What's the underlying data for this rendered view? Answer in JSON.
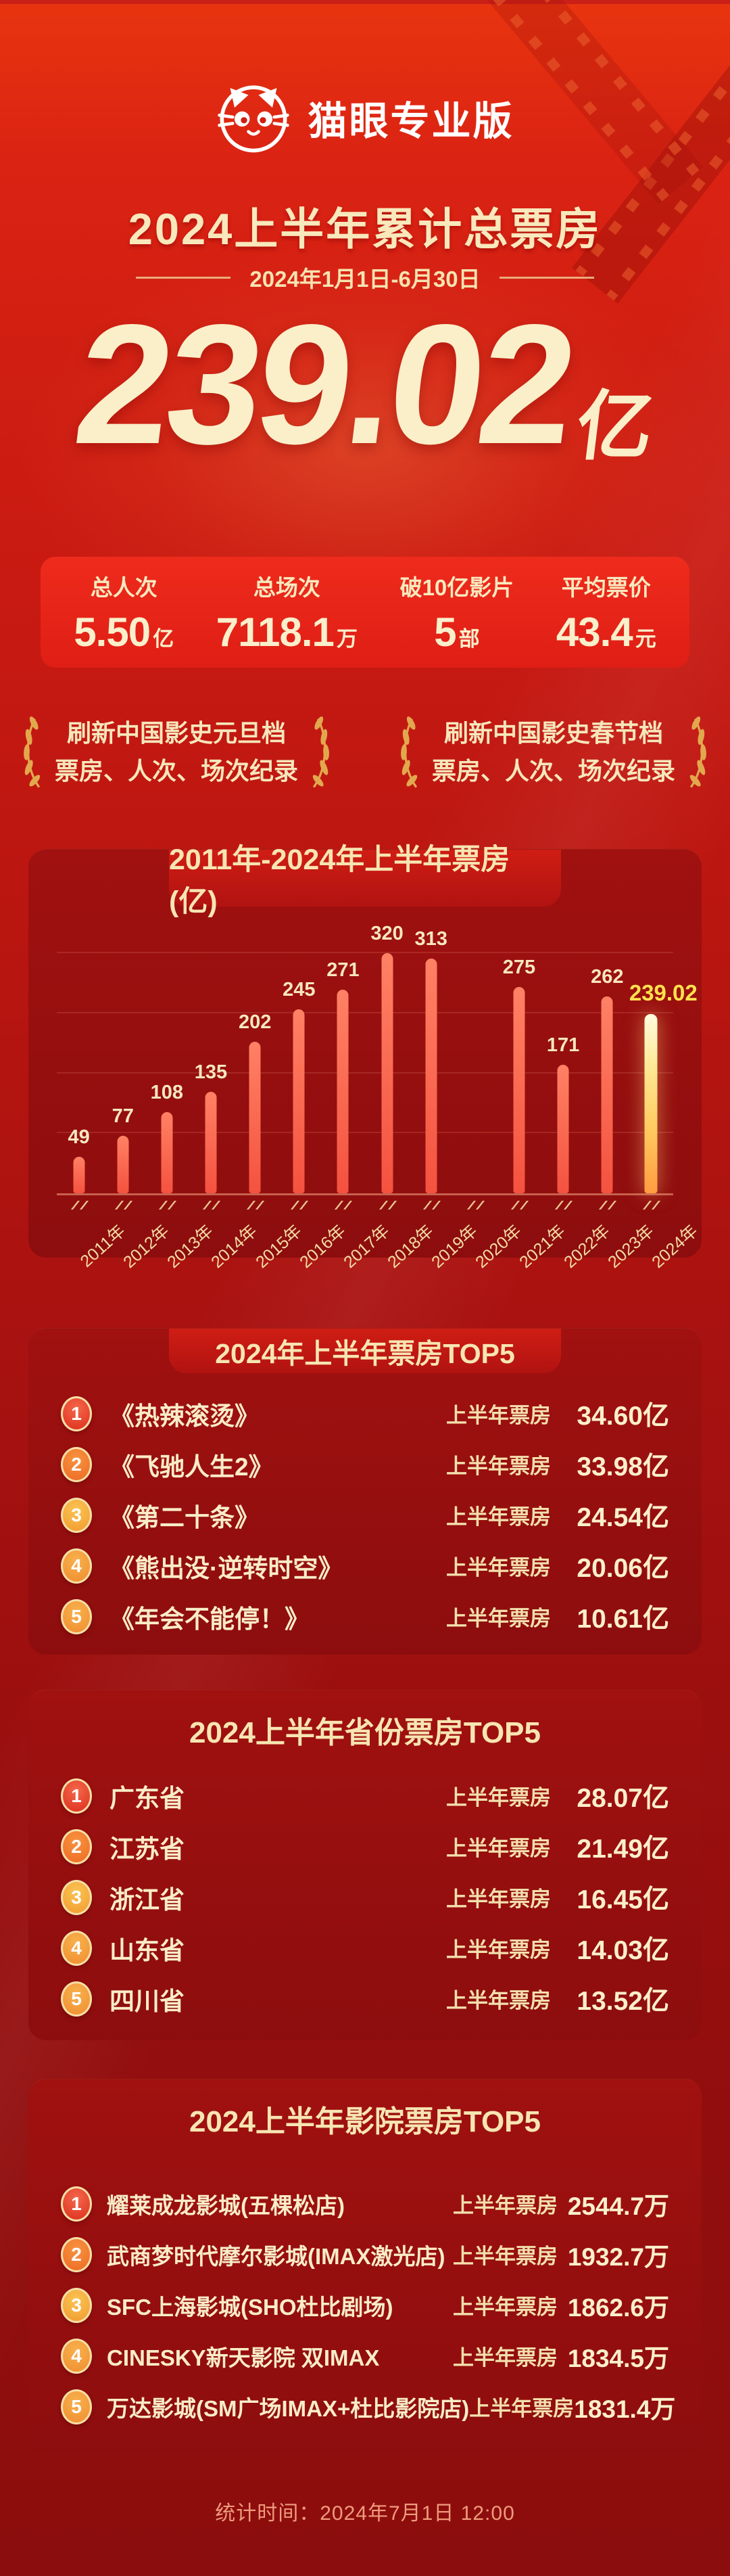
{
  "brand": {
    "name": "猫眼专业版"
  },
  "hero": {
    "title": "2024上半年累计总票房",
    "date_range": "2024年1月1日-6月30日",
    "value": "239.02",
    "unit": "亿"
  },
  "stats": [
    {
      "label": "总人次",
      "value": "5.50",
      "unit": "亿"
    },
    {
      "label": "总场次",
      "value": "7118.1",
      "unit": "万"
    },
    {
      "label": "破10亿影片",
      "value": "5",
      "unit": "部"
    },
    {
      "label": "平均票价",
      "value": "43.4",
      "unit": "元"
    }
  ],
  "achievements": [
    {
      "line1": "刷新中国影史元旦档",
      "line2": "票房、人次、场次纪录"
    },
    {
      "line1": "刷新中国影史春节档",
      "line2": "票房、人次、场次纪录"
    }
  ],
  "chart_data": {
    "type": "bar",
    "title": "2011年-2024年上半年票房 (亿)",
    "categories": [
      "2011年",
      "2012年",
      "2013年",
      "2014年",
      "2015年",
      "2016年",
      "2017年",
      "2018年",
      "2019年",
      "2020年",
      "2021年",
      "2022年",
      "2023年",
      "2024年"
    ],
    "values": [
      49,
      77,
      108,
      135,
      202,
      245,
      271,
      320,
      313,
      null,
      275,
      171,
      262,
      239.02
    ],
    "highlight_index": 13,
    "ylim": [
      0,
      320
    ],
    "grid": true,
    "legend": "none",
    "bar_color": "#F4523F",
    "highlight_color": "#FFD76A",
    "value_label_color": "#F6E7BE",
    "highlight_label_color": "#FFE14E"
  },
  "lists": {
    "movies": {
      "title": "2024年上半年票房TOP5",
      "metric_label": "上半年票房",
      "rows": [
        {
          "rank": 1,
          "name": "《热辣滚烫》",
          "value": "34.60亿"
        },
        {
          "rank": 2,
          "name": "《飞驰人生2》",
          "value": "33.98亿"
        },
        {
          "rank": 3,
          "name": "《第二十条》",
          "value": "24.54亿"
        },
        {
          "rank": 4,
          "name": "《熊出没·逆转时空》",
          "value": "20.06亿"
        },
        {
          "rank": 5,
          "name": "《年会不能停！》",
          "value": "10.61亿"
        }
      ]
    },
    "provinces": {
      "title": "2024上半年省份票房TOP5",
      "metric_label": "上半年票房",
      "rows": [
        {
          "rank": 1,
          "name": "广东省",
          "value": "28.07亿"
        },
        {
          "rank": 2,
          "name": "江苏省",
          "value": "21.49亿"
        },
        {
          "rank": 3,
          "name": "浙江省",
          "value": "16.45亿"
        },
        {
          "rank": 4,
          "name": "山东省",
          "value": "14.03亿"
        },
        {
          "rank": 5,
          "name": "四川省",
          "value": "13.52亿"
        }
      ]
    },
    "cinemas": {
      "title": "2024上半年影院票房TOP5",
      "metric_label": "上半年票房",
      "rows": [
        {
          "rank": 1,
          "name": "耀莱成龙影城(五棵松店)",
          "value": "2544.7万"
        },
        {
          "rank": 2,
          "name": "武商梦时代摩尔影城(IMAX激光店)",
          "value": "1932.7万"
        },
        {
          "rank": 3,
          "name": "SFC上海影城(SHO杜比剧场)",
          "value": "1862.6万"
        },
        {
          "rank": 4,
          "name": "CINESKY新天影院 双IMAX",
          "value": "1834.5万"
        },
        {
          "rank": 5,
          "name": "万达影城(SM广场IMAX+杜比影院店)",
          "value": "1831.4万"
        }
      ]
    }
  },
  "footer": {
    "text": "统计时间：2024年7月1日  12:00"
  },
  "colors": {
    "background_top": "#E8350F",
    "background_bottom": "#8C0D0D",
    "panel": "#9A0F0E",
    "tab": "#C41712",
    "stats_panel": "#E8241A",
    "cream_text": "#F8EAC1",
    "gold": "#E2A84D",
    "footer_text": "#EF9B7C"
  }
}
